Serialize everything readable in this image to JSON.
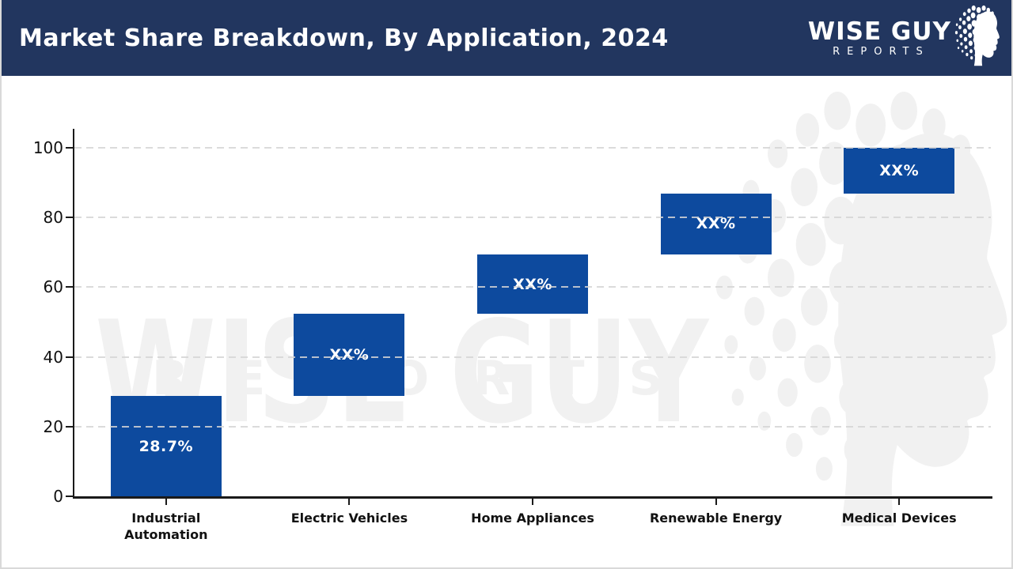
{
  "header": {
    "title": "Market Share Breakdown, By Application, 2024",
    "logo": {
      "word": "WISE GUY",
      "sub": "REPORTS",
      "head_icon": "dotted-face-profile"
    }
  },
  "watermark": {
    "line1": "WISE GUY",
    "line2": "REPORTS",
    "head_icon": "dotted-face-profile"
  },
  "colors": {
    "header_bg": "#22365F",
    "bar_blue": "#0D4A9E",
    "bar_label_text": "#ffffff",
    "gridline": "#d5d5d5",
    "axis": "#1a1a1a",
    "watermark": "#f1f1f1",
    "frame_border": "#d9d9d9"
  },
  "chart_data": {
    "type": "bar",
    "subtype": "floating-segment-breakdown (waterfall-style, each bar stacks on previous cumulative share)",
    "title": "Market Share Breakdown, By Application, 2024",
    "categories": [
      "Industrial Automation",
      "Electric Vehicles",
      "Home Appliances",
      "Renewable Energy",
      "Medical Devices"
    ],
    "segments": [
      {
        "category": "Industrial Automation",
        "start": 0,
        "end": 28.7,
        "label": "28.7%"
      },
      {
        "category": "Electric Vehicles",
        "start": 28.7,
        "end": 52.3,
        "label": "XX%"
      },
      {
        "category": "Home Appliances",
        "start": 52.3,
        "end": 69.3,
        "label": "XX%"
      },
      {
        "category": "Renewable Energy",
        "start": 69.3,
        "end": 86.9,
        "label": "XX%"
      },
      {
        "category": "Medical Devices",
        "start": 86.9,
        "end": 100,
        "label": "XX%"
      }
    ],
    "value_labels": [
      "28.7%",
      "XX%",
      "XX%",
      "XX%",
      "XX%"
    ],
    "yticks": [
      0,
      20,
      40,
      60,
      80,
      100
    ],
    "ylim": [
      0,
      105.4
    ],
    "xlabel": "",
    "ylabel": "",
    "grid": "horizontal dashed lines drawn over bars",
    "legend": "none"
  }
}
